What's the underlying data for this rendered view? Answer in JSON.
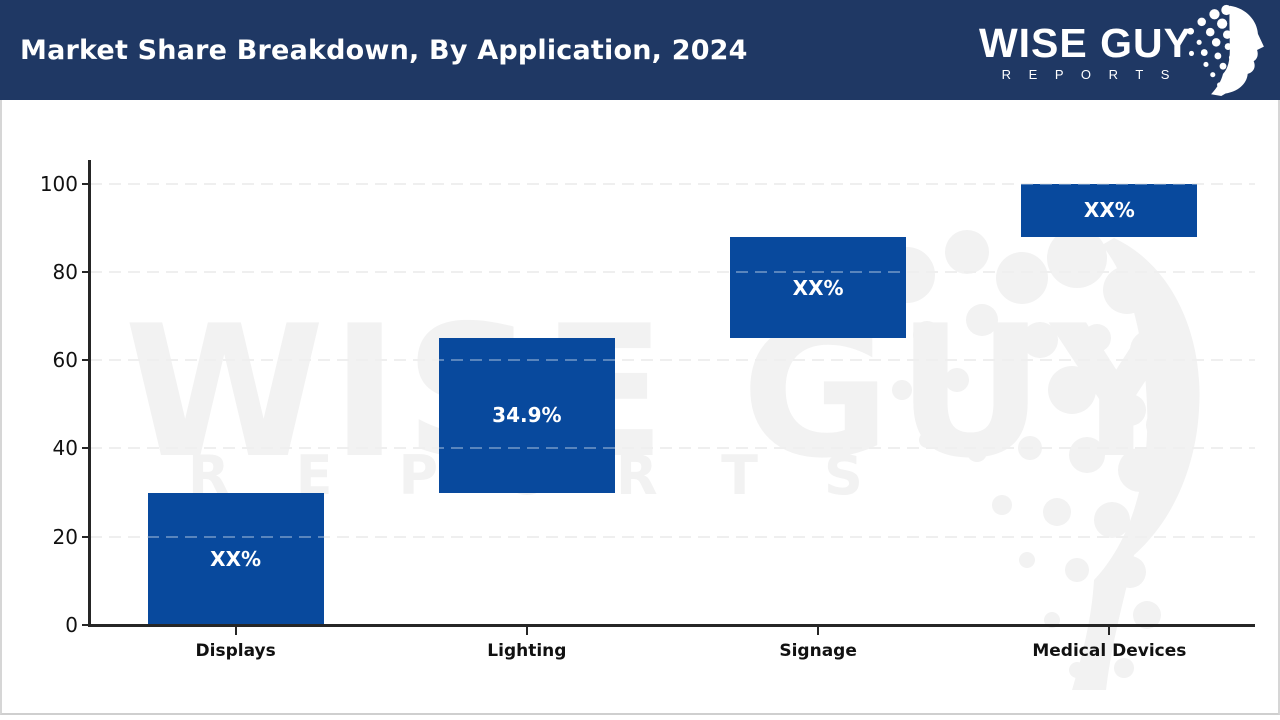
{
  "header": {
    "title": "Market Share Breakdown, By Application, 2024",
    "bg_color": "#1f3864",
    "logo": {
      "wordmark": "WISE GUY",
      "subtext": "R E P O R T S"
    }
  },
  "watermark": {
    "wordmark": "WISE GUY",
    "subtext": "REPORTS"
  },
  "chart_data": {
    "type": "bar",
    "subtype": "waterfall",
    "title": "Market Share Breakdown, By Application, 2024",
    "categories": [
      "Displays",
      "Lighting",
      "Signage",
      "Medical Devices"
    ],
    "series": [
      {
        "name": "Market Share (%)",
        "segments": [
          {
            "category": "Displays",
            "start": 0,
            "end": 30,
            "label": "XX%"
          },
          {
            "category": "Lighting",
            "start": 30,
            "end": 64.9,
            "label": "34.9%"
          },
          {
            "category": "Signage",
            "start": 64.9,
            "end": 87.9,
            "label": "XX%"
          },
          {
            "category": "Medical Devices",
            "start": 87.9,
            "end": 99.9,
            "label": "XX%"
          }
        ]
      }
    ],
    "ylim": [
      0,
      105
    ],
    "yticks": [
      0,
      20,
      40,
      60,
      80,
      100
    ],
    "grid": "horizontal dashed, drawn over bars",
    "legend": "none",
    "bar_color": "#08499d",
    "bar_label_color": "#ffffff",
    "axis_color": "#262626",
    "gridline_color": "#e7e7e7"
  }
}
